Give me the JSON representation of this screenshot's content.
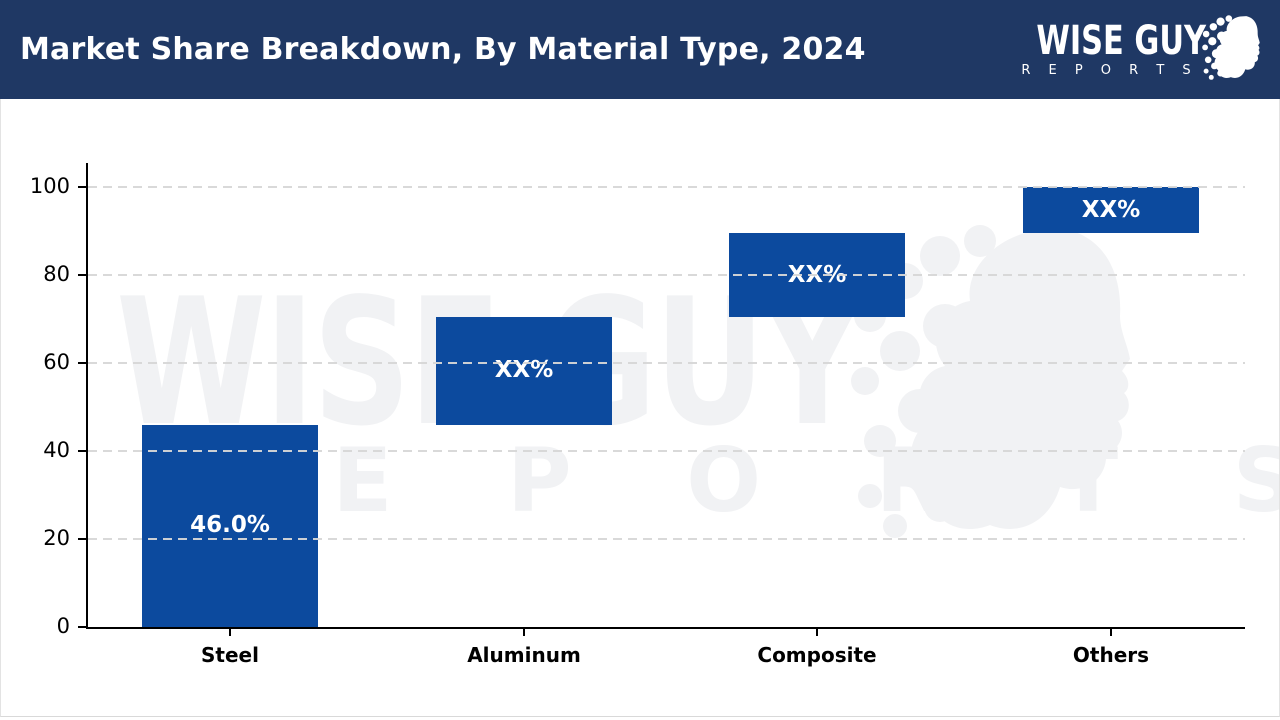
{
  "header": {
    "title": "Market Share Breakdown, By Material Type, 2024",
    "logo": {
      "line1": "WISE GUY",
      "line2": "R E P O R T S"
    }
  },
  "watermark": {
    "line1": "WISE GUY",
    "line2": "R E P O R T S"
  },
  "chart_data": {
    "type": "bar",
    "subtype": "waterfall",
    "title": "Market Share Breakdown, By Material Type, 2024",
    "categories": [
      "Steel",
      "Aluminum",
      "Composite",
      "Others"
    ],
    "segments": [
      {
        "category": "Steel",
        "start": 0,
        "end": 46.0,
        "value": 46.0,
        "label": "46.0%"
      },
      {
        "category": "Aluminum",
        "start": 46.0,
        "end": 70.5,
        "value": 24.5,
        "label": "XX%"
      },
      {
        "category": "Composite",
        "start": 70.5,
        "end": 89.5,
        "value": 19.0,
        "label": "XX%"
      },
      {
        "category": "Others",
        "start": 89.5,
        "end": 100.0,
        "value": 10.5,
        "label": "XX%"
      }
    ],
    "yticks": [
      0,
      20,
      40,
      60,
      80,
      100
    ],
    "ylim": [
      0,
      105.5
    ],
    "xlabel": "",
    "ylabel": "",
    "grid": "horizontal-dashed-over-bars",
    "legend": "none"
  },
  "colors": {
    "header_bg": "#1f3864",
    "bar": "#0c4a9e",
    "grid": "#d7d7d7",
    "axis": "#000000",
    "tick_label": "#000000",
    "bar_label": "#ffffff",
    "watermark": "#f1f2f4"
  }
}
